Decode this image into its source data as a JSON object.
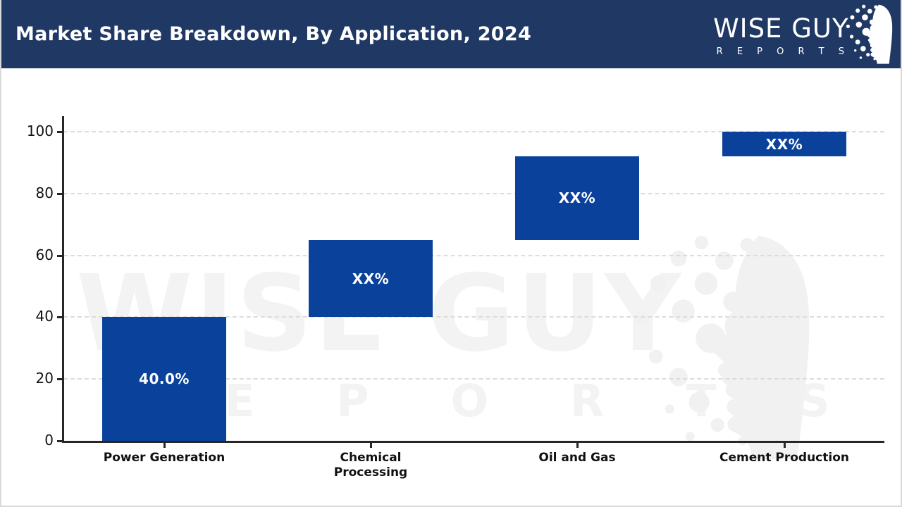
{
  "header": {
    "title": "Market Share Breakdown, By Application, 2024",
    "logo": {
      "wordmark": "WISE GUY",
      "subtext": "R E P O R T S",
      "face_icon": "dotted-head-profile"
    }
  },
  "watermark": {
    "wordmark": "WISE GUY",
    "subtext": "R E P O R T S",
    "face_icon": "dotted-head-profile"
  },
  "chart_data": {
    "type": "bar",
    "subtype": "floating-waterfall",
    "title": "",
    "xlabel": "",
    "ylabel": "",
    "ylim": [
      0,
      100
    ],
    "yticks": [
      0,
      20,
      40,
      60,
      80,
      100
    ],
    "grid": "horizontal dashed",
    "legend": "none",
    "bar_color": "#0A429B",
    "categories": [
      "Power Generation",
      "Chemical Processing",
      "Oil and Gas",
      "Cement Production"
    ],
    "xtick_display": [
      "Power Generation",
      "Chemical\nProcessing",
      "Oil and Gas",
      "Cement Production"
    ],
    "bars": [
      {
        "category": "Power Generation",
        "start": 0,
        "end": 40,
        "value": 40,
        "label": "40.0%"
      },
      {
        "category": "Chemical Processing",
        "start": 40,
        "end": 65,
        "value": 25,
        "label": "XX%"
      },
      {
        "category": "Oil and Gas",
        "start": 65,
        "end": 92,
        "value": 27,
        "label": "XX%"
      },
      {
        "category": "Cement Production",
        "start": 92,
        "end": 100,
        "value": 8,
        "label": "XX%"
      }
    ]
  },
  "colors": {
    "header_bg": "#203864",
    "bar": "#0A429B",
    "axis": "#262626",
    "gridline": "#DCDCDC",
    "watermark": "#F3F3F3",
    "page_border": "#D9D9D9",
    "bar_label": "#FFFFFF"
  }
}
